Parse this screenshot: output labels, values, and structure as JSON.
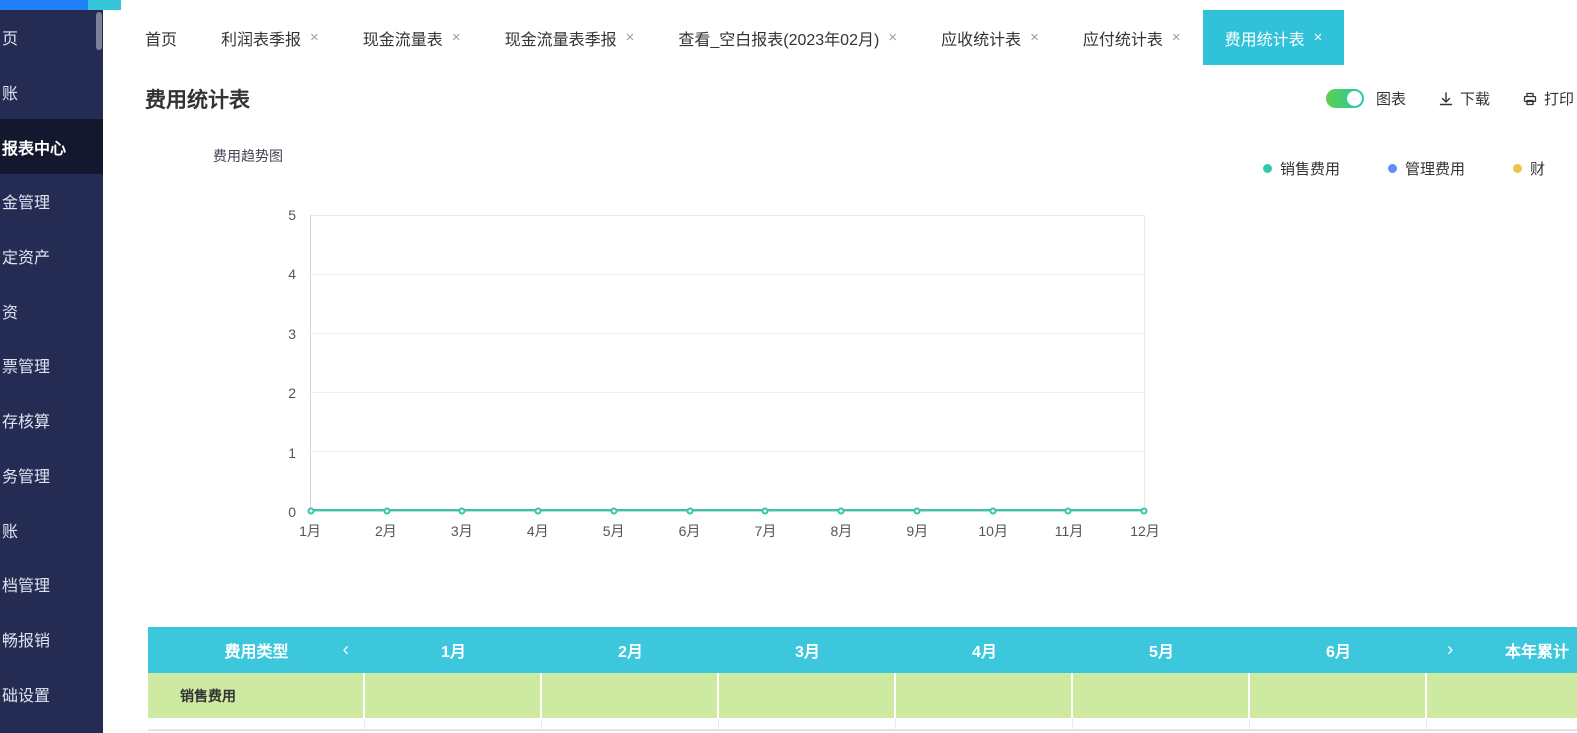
{
  "colors": {
    "accent_blue": "#2080f7",
    "accent_cyan": "#36c6dc",
    "sidebar_bg": "#252c54",
    "sidebar_active_bg": "#14182e",
    "table_header_bg": "#3cc7dc",
    "row_green": "#cde9a2",
    "series_teal": "#31c9a8",
    "series_blue": "#5b8ff9",
    "series_yellow": "#f0c14e"
  },
  "icons": {
    "close": "×"
  },
  "sidebar": {
    "items": [
      {
        "label": "页"
      },
      {
        "label": "账"
      },
      {
        "label": "报表中心"
      },
      {
        "label": "金管理"
      },
      {
        "label": "定资产"
      },
      {
        "label": "资"
      },
      {
        "label": "票管理"
      },
      {
        "label": "存核算"
      },
      {
        "label": "务管理"
      },
      {
        "label": "账"
      },
      {
        "label": "档管理"
      },
      {
        "label": "畅报销"
      },
      {
        "label": "础设置"
      }
    ],
    "active_index": 2
  },
  "tabs": [
    {
      "label": "首页",
      "closable": false
    },
    {
      "label": "利润表季报",
      "closable": true
    },
    {
      "label": "现金流量表",
      "closable": true
    },
    {
      "label": "现金流量表季报",
      "closable": true
    },
    {
      "label": "查看_空白报表(2023年02月)",
      "closable": true
    },
    {
      "label": "应收统计表",
      "closable": true
    },
    {
      "label": "应付统计表",
      "closable": true
    },
    {
      "label": "费用统计表",
      "closable": true,
      "active": true
    }
  ],
  "header": {
    "title": "费用统计表",
    "toggle_label": "图表",
    "download_label": "下载",
    "print_label": "打印"
  },
  "chart": {
    "title": "费用趋势图",
    "legend": [
      {
        "label": "销售费用",
        "color": "#31c9a8"
      },
      {
        "label": "管理费用",
        "color": "#5b8ff9"
      },
      {
        "label": "财",
        "color": "#f0c14e"
      }
    ],
    "chart_data": {
      "type": "line",
      "categories": [
        "1月",
        "2月",
        "3月",
        "4月",
        "5月",
        "6月",
        "7月",
        "8月",
        "9月",
        "10月",
        "11月",
        "12月"
      ],
      "series": [
        {
          "name": "销售费用",
          "values": [
            0,
            0,
            0,
            0,
            0,
            0,
            0,
            0,
            0,
            0,
            0,
            0
          ],
          "color": "#31c9a8"
        },
        {
          "name": "管理费用",
          "values": [
            0,
            0,
            0,
            0,
            0,
            0,
            0,
            0,
            0,
            0,
            0,
            0
          ],
          "color": "#5b8ff9"
        },
        {
          "name": "财",
          "values": [
            0,
            0,
            0,
            0,
            0,
            0,
            0,
            0,
            0,
            0,
            0,
            0
          ],
          "color": "#f0c14e"
        }
      ],
      "ylim": [
        0,
        5
      ],
      "ytick_step": 1,
      "grid": true,
      "legend_position": "top-right"
    }
  },
  "table": {
    "type_header": "费用类型",
    "months": [
      "1月",
      "2月",
      "3月",
      "4月",
      "5月",
      "6月"
    ],
    "total_header": "本年累计",
    "prev_arrow": "‹",
    "next_arrow": "›",
    "rows": [
      {
        "type": "销售费用",
        "values": [
          "",
          "",
          "",
          "",
          "",
          "",
          ""
        ]
      }
    ]
  }
}
